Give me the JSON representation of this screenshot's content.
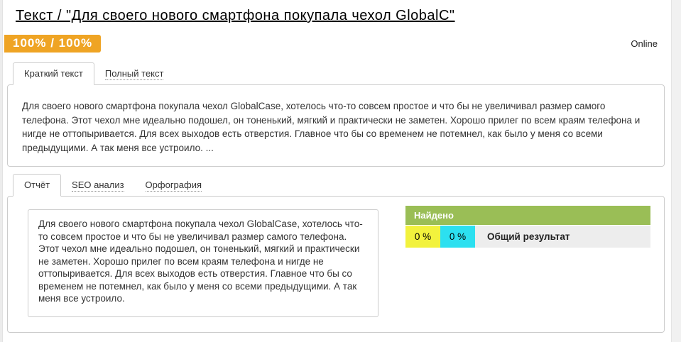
{
  "page": {
    "title": "Текст / \"Для своего нового смартфона покупала чехол GlobalC\"",
    "status_badge": "100% / 100%",
    "online_label": "Online"
  },
  "colors": {
    "badge_orange": "#efa424",
    "results_header_green": "#9abe56",
    "cell_yellow": "#f2f23d",
    "cell_cyan": "#2ce0f0",
    "row_gray": "#ededed"
  },
  "text_section": {
    "tabs": [
      {
        "label": "Краткий текст",
        "active": true
      },
      {
        "label": "Полный текст",
        "active": false
      }
    ],
    "short_text": "Для своего нового смартфона покупала чехол GlobalCase, хотелось что-то совсем простое и что бы не увеличивал размер самого телефона. Этот чехол мне идеально подошел, он тоненький, мягкий и практически не заметен. Хорошо прилег по всем краям телефона и нигде не оттопыривается. Для всех выходов есть отверстия. Главное что бы со временем не потемнел, как было у меня со всеми предыдущими. А так меня все устроило. ..."
  },
  "report_section": {
    "tabs": [
      {
        "label": "Отчёт",
        "active": true
      },
      {
        "label": "SEO анализ",
        "active": false
      },
      {
        "label": "Орфография",
        "active": false
      }
    ],
    "text": "Для своего нового смартфона покупала чехол GlobalCase, хотелось что-то совсем простое и что бы не увеличивал размер самого телефона. Этот чехол мне идеально подошел, он тоненький, мягкий и практически не заметен. Хорошо прилег по всем краям телефона и нигде не оттопыривается. Для всех выходов есть отверстия. Главное что бы со временем не потемнел, как было у меня со всеми предыдущими. А так меня все устроило.",
    "results": {
      "header": "Найдено",
      "row": {
        "percent_yellow": "0 %",
        "percent_cyan": "0 %",
        "label": "Общий результат"
      }
    }
  }
}
